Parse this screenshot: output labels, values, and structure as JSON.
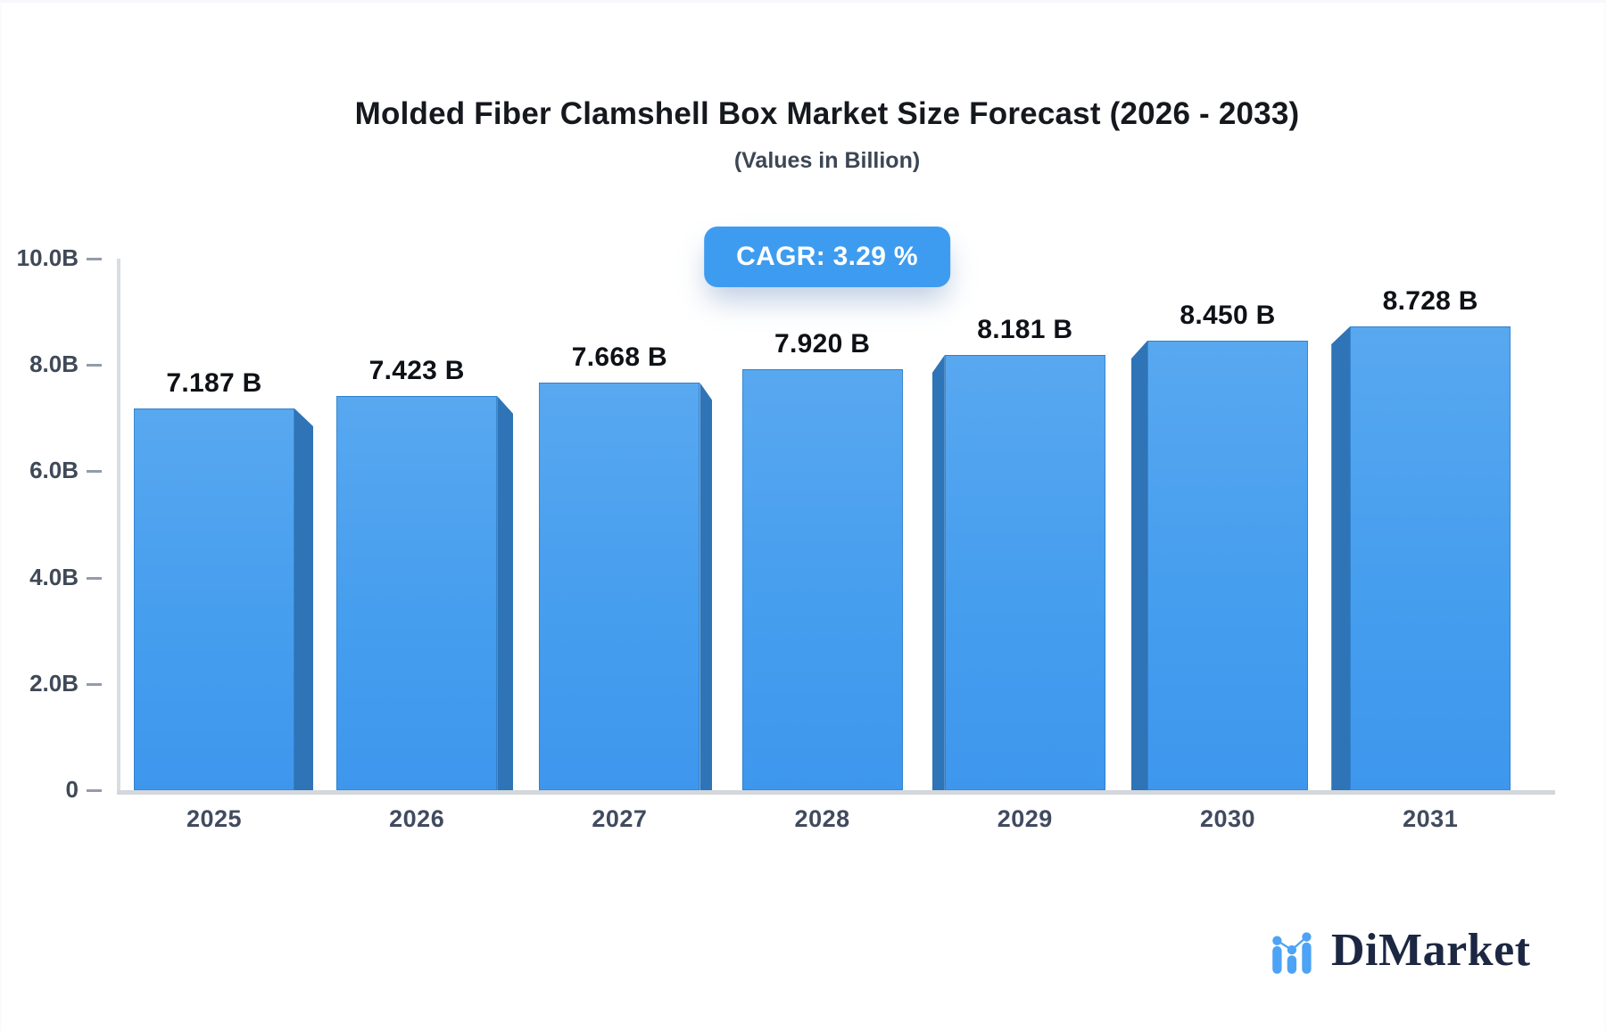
{
  "chart_data": {
    "type": "bar",
    "title": "Molded Fiber Clamshell Box Market Size Forecast (2026 - 2033)",
    "subtitle": "(Values in Billion)",
    "cagr_label": "CAGR: 3.29 %",
    "categories": [
      "2025",
      "2026",
      "2027",
      "2028",
      "2029",
      "2030",
      "2031"
    ],
    "values": [
      7.187,
      7.423,
      7.668,
      7.92,
      8.181,
      8.45,
      8.728
    ],
    "value_labels": [
      "7.187 B",
      "7.423 B",
      "7.668 B",
      "7.920 B",
      "8.181 B",
      "8.450 B",
      "8.728 B"
    ],
    "xlabel": "",
    "ylabel": "",
    "ylim": [
      0,
      10
    ],
    "yticks": [
      {
        "label": "10.0B",
        "value": 10
      },
      {
        "label": "8.0B",
        "value": 8
      },
      {
        "label": "6.0B",
        "value": 6
      },
      {
        "label": "4.0B",
        "value": 4
      },
      {
        "label": "2.0B",
        "value": 2
      },
      {
        "label": "0",
        "value": 0
      }
    ],
    "grid": false,
    "legend": false,
    "bar_style": "3d-perspective-center"
  },
  "colors": {
    "bar_face": "#469eee",
    "bar_face_top": "#58a8f0",
    "bar_side": "#2f74b6",
    "badge_bg": "#3e9cf0",
    "badge_text": "#ffffff",
    "axis_line": "#d6dade",
    "axis_label": "#3f4957",
    "value_label": "#0e1116",
    "logo_blue": "#4da3f5",
    "logo_navy": "#1c2742"
  },
  "logo": {
    "text": "DiMarket"
  }
}
